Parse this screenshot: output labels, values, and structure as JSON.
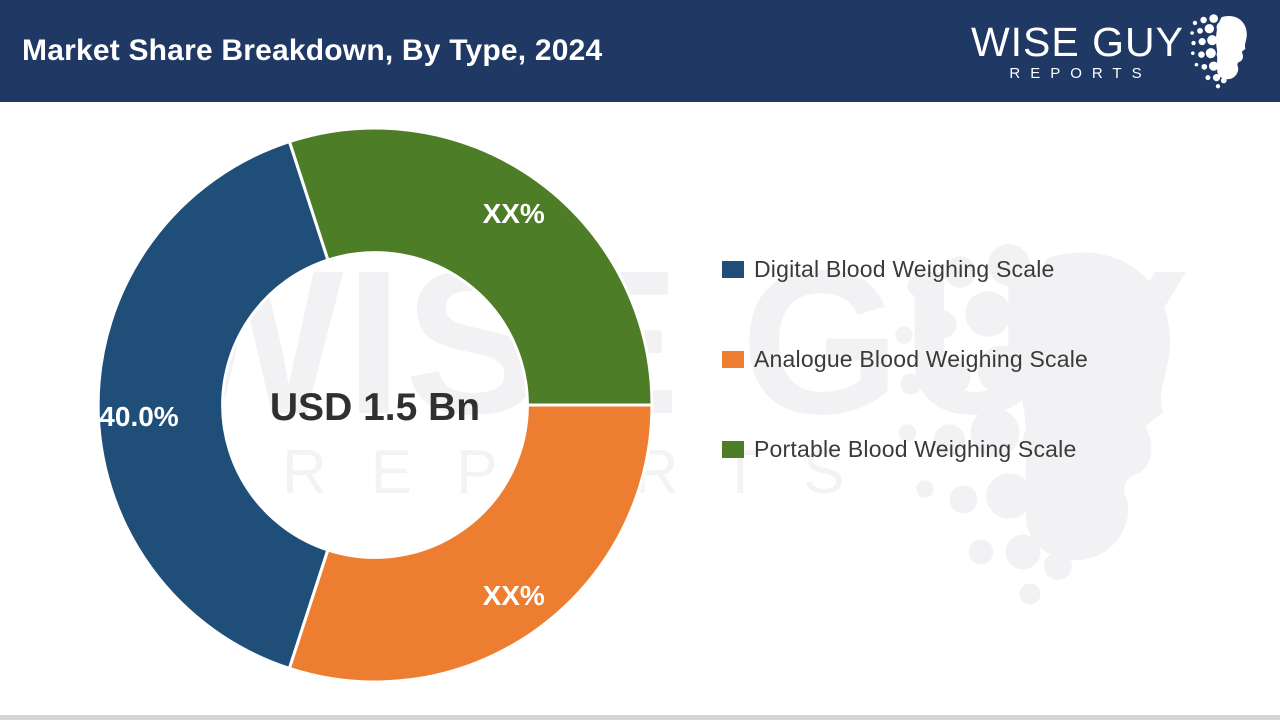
{
  "header": {
    "title": "Market Share Breakdown, By Type, 2024",
    "logo": {
      "line1": "WISE GUY",
      "line2": "REPORTS"
    }
  },
  "watermark": {
    "line1": "WISE GUY",
    "line2": "REPORTS"
  },
  "colors": {
    "header_bg": "#1F3864",
    "footer_bar": "#d5d5d5",
    "digital_blue": "#1F4E79",
    "analogue_orange": "#ED7D31",
    "portable_green": "#4E7D28"
  },
  "chart_data": {
    "type": "pie",
    "donut": true,
    "title": "Market Share Breakdown, By Type, 2024",
    "center_label": "USD 1.5 Bn",
    "start_angle_deg": 0,
    "direction": "counterclockwise",
    "inner_radius_ratio": 0.55,
    "legend_position": "right",
    "slices": [
      {
        "label": "Portable Blood Weighing Scale",
        "display": "XX%",
        "value": 30,
        "color": "#4E7D28"
      },
      {
        "label": "Digital Blood Weighing Scale",
        "display": "40.0%",
        "value": 40,
        "color": "#1F4E79"
      },
      {
        "label": "Analogue Blood Weighing Scale",
        "display": "XX%",
        "value": 30,
        "color": "#ED7D31"
      }
    ]
  },
  "legend": {
    "items": [
      {
        "label": "Digital Blood Weighing Scale",
        "color": "#1F4E79"
      },
      {
        "label": "Analogue Blood Weighing Scale",
        "color": "#ED7D31"
      },
      {
        "label": "Portable Blood Weighing Scale",
        "color": "#4E7D28"
      }
    ]
  }
}
